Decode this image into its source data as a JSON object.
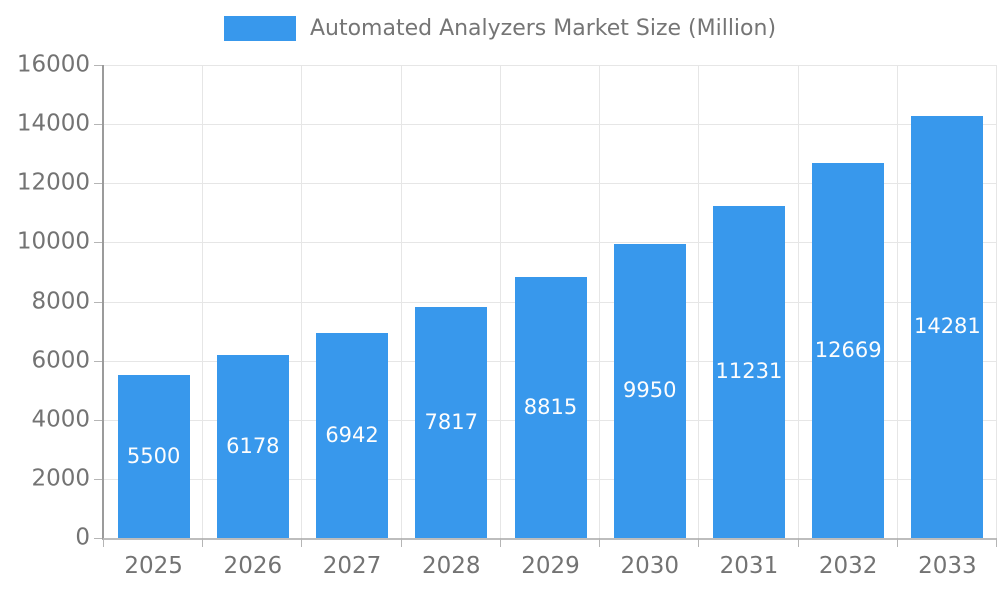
{
  "chart_data": {
    "type": "bar",
    "title": "Automated Analyzers Market Size (Million)",
    "categories": [
      "2025",
      "2026",
      "2027",
      "2028",
      "2029",
      "2030",
      "2031",
      "2032",
      "2033"
    ],
    "series": [
      {
        "name": "Automated Analyzers Market Size (Million)",
        "values": [
          5500,
          6178,
          6942,
          7817,
          8815,
          9950,
          11231,
          12669,
          14281
        ]
      }
    ],
    "value_labels": [
      "5500",
      "6178",
      "6942",
      "7817",
      "8815",
      "9950",
      "11231",
      "12669",
      "14281"
    ],
    "xlabel": "",
    "ylabel": "",
    "ylim": [
      0,
      16000
    ],
    "yticks": [
      0,
      2000,
      4000,
      6000,
      8000,
      10000,
      12000,
      14000,
      16000
    ],
    "ytick_labels": [
      "0",
      "2000",
      "4000",
      "6000",
      "8000",
      "10000",
      "12000",
      "14000",
      "16000"
    ],
    "grid": true,
    "legend_position": "top-center",
    "colors": {
      "bar_fill": "#3898ec",
      "value_label_text": "#fdfdfd",
      "axis_text": "#737373",
      "legend_text": "#757575",
      "gridline": "#e6e6e6",
      "axis_line": "#9b9b9b",
      "background": "#ffffff"
    }
  },
  "legend": {
    "label": "Automated Analyzers Market Size (Million)"
  }
}
